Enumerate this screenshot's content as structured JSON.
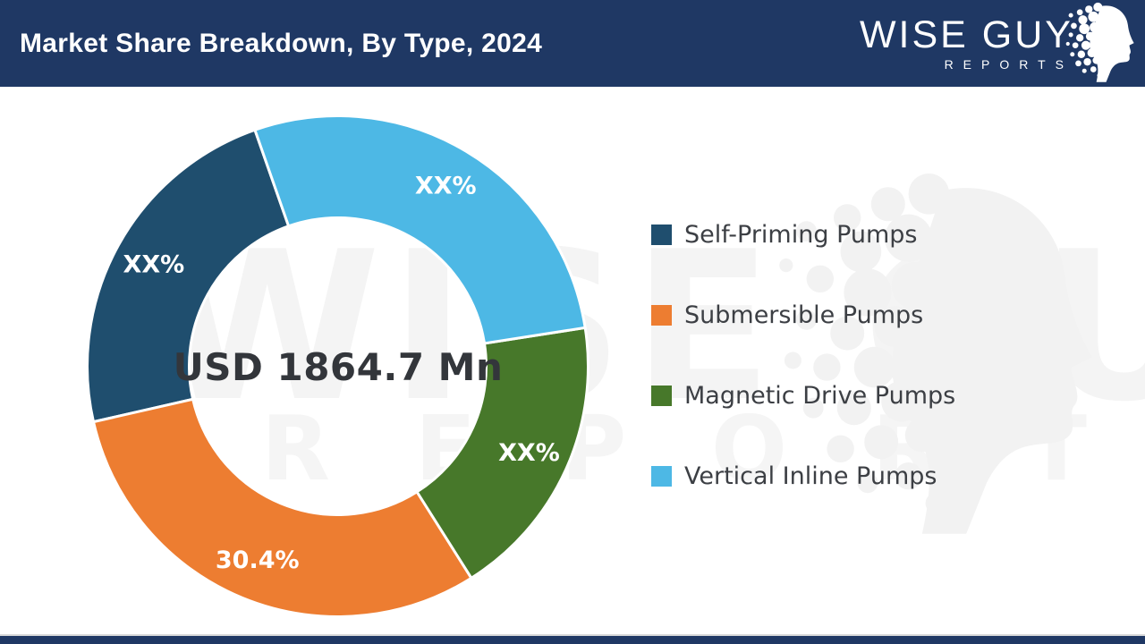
{
  "header": {
    "title": "Market Share Breakdown, By Type, 2024",
    "logo": {
      "line1": "WISE GUY",
      "line2": "REPORTS"
    }
  },
  "watermark": {
    "line1": "WISE GUY",
    "line2": "R E P O R T S"
  },
  "chart_data": {
    "type": "pie",
    "donut": true,
    "title": "Market Share Breakdown, By Type, 2024",
    "center_label": "USD 1864.7 Mn",
    "start_angle_deg": 109.3,
    "direction": "counterclockwise",
    "legend_position": "right",
    "segments": [
      {
        "name": "Self-Priming Pumps",
        "value": 23.2,
        "label": "XX%",
        "color": "#1f4e6e"
      },
      {
        "name": "Submersible Pumps",
        "value": 30.4,
        "label": "30.4%",
        "color": "#ed7d31"
      },
      {
        "name": "Magnetic Drive Pumps",
        "value": 18.5,
        "label": "XX%",
        "color": "#47782a"
      },
      {
        "name": "Vertical Inline Pumps",
        "value": 27.9,
        "label": "XX%",
        "color": "#4db8e5"
      }
    ]
  },
  "colors": {
    "header_background": "#1f3864",
    "footer_background": "#1f3864",
    "center_text": "#33363b",
    "legend_text": "#3c3f44"
  }
}
